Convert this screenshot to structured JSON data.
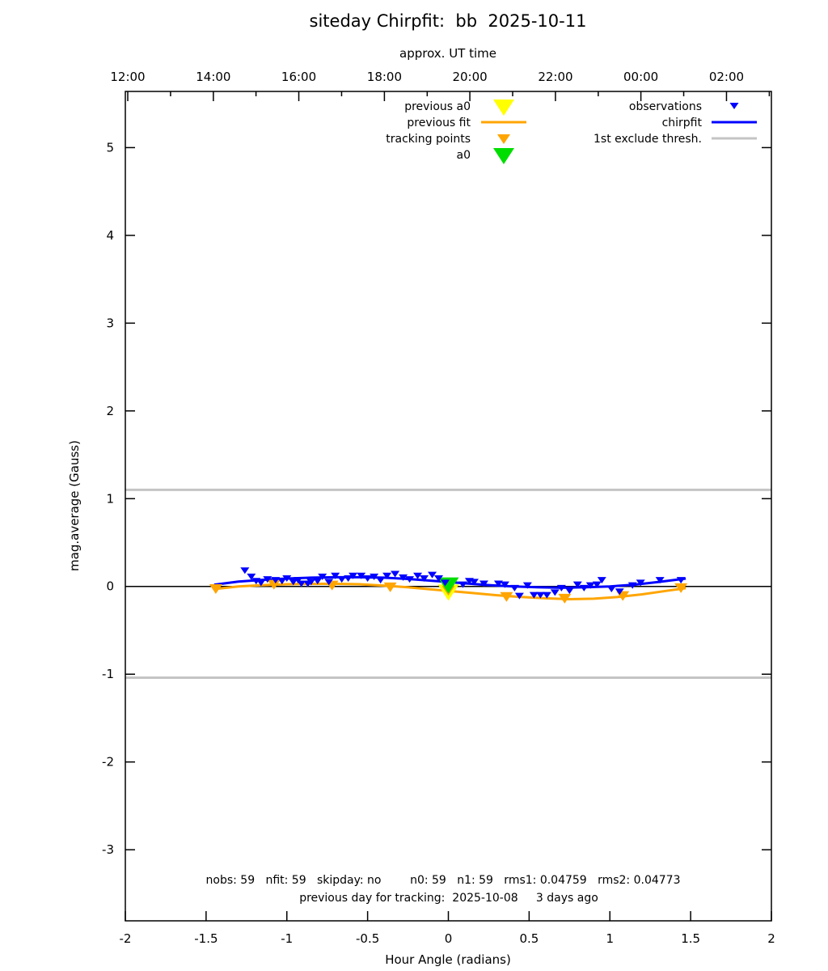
{
  "page_title": "siteday Chirpfit:  bb  2025-10-11",
  "chart_data": {
    "type": "scatter",
    "title": "siteday Chirpfit:  bb  2025-10-11",
    "x2label": "approx. UT time",
    "xlabel": "Hour Angle (radians)",
    "ylabel": "mag.average (Gauss)",
    "xlim": [
      -2,
      2
    ],
    "ylim": [
      -3.81,
      5.64
    ],
    "grid": false,
    "x_ticks": [
      -2,
      -1.5,
      -1,
      -0.5,
      0,
      0.5,
      1,
      1.5,
      2
    ],
    "y_ticks": [
      -3,
      -2,
      -1,
      0,
      1,
      2,
      3,
      4,
      5
    ],
    "ut_ticks": [
      {
        "label": "12:00",
        "ha": -1.985
      },
      {
        "label": "",
        "ha": -1.72
      },
      {
        "label": "14:00",
        "ha": -1.455
      },
      {
        "label": "",
        "ha": -1.191
      },
      {
        "label": "16:00",
        "ha": -0.926
      },
      {
        "label": "",
        "ha": -0.661
      },
      {
        "label": "18:00",
        "ha": -0.396
      },
      {
        "label": "",
        "ha": -0.131
      },
      {
        "label": "20:00",
        "ha": 0.133
      },
      {
        "label": "",
        "ha": 0.398
      },
      {
        "label": "22:00",
        "ha": 0.663
      },
      {
        "label": "",
        "ha": 0.928
      },
      {
        "label": "00:00",
        "ha": 1.192
      },
      {
        "label": "",
        "ha": 1.457
      },
      {
        "label": "02:00",
        "ha": 1.722
      },
      {
        "label": "",
        "ha": 1.987
      }
    ],
    "zero_line": 0,
    "exclude_thresholds": [
      1.1,
      -1.04
    ],
    "colors": {
      "observations": "#0000ff",
      "chirpfit": "#0000ff",
      "previous_fit": "#ffa500",
      "tracking_points": "#ffa500",
      "a0": "#00dd00",
      "previous_a0": "#ffff00",
      "threshold": "#c4c4c4",
      "zero": "#000000"
    },
    "series": {
      "observations": [
        [
          -1.26,
          0.18
        ],
        [
          -1.22,
          0.11
        ],
        [
          -1.19,
          0.06
        ],
        [
          -1.16,
          0.04
        ],
        [
          -1.12,
          0.08
        ],
        [
          -1.07,
          0.07
        ],
        [
          -1.03,
          0.06
        ],
        [
          -1.0,
          0.09
        ],
        [
          -0.96,
          0.05
        ],
        [
          -0.93,
          0.07
        ],
        [
          -0.91,
          0.03
        ],
        [
          -0.87,
          0.03
        ],
        [
          -0.85,
          0.05
        ],
        [
          -0.81,
          0.06
        ],
        [
          -0.78,
          0.11
        ],
        [
          -0.74,
          0.05
        ],
        [
          -0.7,
          0.12
        ],
        [
          -0.66,
          0.08
        ],
        [
          -0.62,
          0.09
        ],
        [
          -0.59,
          0.12
        ],
        [
          -0.54,
          0.12
        ],
        [
          -0.5,
          0.09
        ],
        [
          -0.46,
          0.11
        ],
        [
          -0.42,
          0.07
        ],
        [
          -0.38,
          0.12
        ],
        [
          -0.33,
          0.14
        ],
        [
          -0.28,
          0.1
        ],
        [
          -0.24,
          0.08
        ],
        [
          -0.19,
          0.12
        ],
        [
          -0.15,
          0.09
        ],
        [
          -0.1,
          0.13
        ],
        [
          -0.06,
          0.09
        ],
        [
          -0.02,
          0.04
        ],
        [
          0.09,
          0.02
        ],
        [
          0.13,
          0.06
        ],
        [
          0.16,
          0.05
        ],
        [
          0.22,
          0.03
        ],
        [
          0.31,
          0.03
        ],
        [
          0.35,
          0.02
        ],
        [
          0.41,
          -0.02
        ],
        [
          0.44,
          -0.11
        ],
        [
          0.49,
          0.01
        ],
        [
          0.53,
          -0.1
        ],
        [
          0.57,
          -0.1
        ],
        [
          0.61,
          -0.1
        ],
        [
          0.66,
          -0.07
        ],
        [
          0.7,
          -0.02
        ],
        [
          0.75,
          -0.05
        ],
        [
          0.8,
          0.02
        ],
        [
          0.84,
          -0.02
        ],
        [
          0.88,
          0.01
        ],
        [
          0.92,
          0.02
        ],
        [
          0.95,
          0.07
        ],
        [
          1.01,
          -0.03
        ],
        [
          1.06,
          -0.06
        ],
        [
          1.14,
          0.01
        ],
        [
          1.19,
          0.04
        ],
        [
          1.31,
          0.07
        ],
        [
          1.44,
          0.07
        ]
      ],
      "chirpfit": [
        [
          -1.45,
          0.02
        ],
        [
          -1.3,
          0.055
        ],
        [
          -1.15,
          0.075
        ],
        [
          -1.0,
          0.09
        ],
        [
          -0.85,
          0.1
        ],
        [
          -0.7,
          0.105
        ],
        [
          -0.55,
          0.105
        ],
        [
          -0.4,
          0.1
        ],
        [
          -0.25,
          0.085
        ],
        [
          -0.1,
          0.065
        ],
        [
          0.0,
          0.05
        ],
        [
          0.1,
          0.035
        ],
        [
          0.25,
          0.015
        ],
        [
          0.4,
          0.0
        ],
        [
          0.55,
          -0.01
        ],
        [
          0.7,
          -0.015
        ],
        [
          0.85,
          -0.01
        ],
        [
          1.0,
          0.0
        ],
        [
          1.15,
          0.02
        ],
        [
          1.3,
          0.05
        ],
        [
          1.47,
          0.09
        ]
      ],
      "previous_fit": [
        [
          -1.45,
          -0.03
        ],
        [
          -1.3,
          0.0
        ],
        [
          -1.15,
          0.015
        ],
        [
          -1.0,
          0.025
        ],
        [
          -0.85,
          0.03
        ],
        [
          -0.7,
          0.03
        ],
        [
          -0.55,
          0.025
        ],
        [
          -0.4,
          0.01
        ],
        [
          -0.25,
          -0.01
        ],
        [
          -0.1,
          -0.035
        ],
        [
          0.0,
          -0.05
        ],
        [
          0.15,
          -0.075
        ],
        [
          0.3,
          -0.1
        ],
        [
          0.45,
          -0.12
        ],
        [
          0.6,
          -0.135
        ],
        [
          0.75,
          -0.145
        ],
        [
          0.9,
          -0.14
        ],
        [
          1.05,
          -0.12
        ],
        [
          1.2,
          -0.09
        ],
        [
          1.35,
          -0.05
        ],
        [
          1.47,
          -0.02
        ]
      ],
      "tracking_points": [
        [
          -1.44,
          -0.03
        ],
        [
          -1.08,
          0.02
        ],
        [
          -0.72,
          0.01
        ],
        [
          -0.36,
          -0.01
        ],
        [
          0.0,
          -0.05
        ],
        [
          0.36,
          -0.12
        ],
        [
          0.72,
          -0.14
        ],
        [
          1.08,
          -0.11
        ],
        [
          1.44,
          -0.02
        ]
      ],
      "a0": [
        0.0,
        0.01
      ],
      "previous_a0": [
        0.0,
        -0.07
      ]
    },
    "legend": {
      "left": [
        {
          "label": "previous a0",
          "marker": "triangle_big",
          "color": "#ffff00"
        },
        {
          "label": "previous fit",
          "marker": "line",
          "color": "#ffa500"
        },
        {
          "label": "tracking points",
          "marker": "triangle_small",
          "color": "#ffa500"
        },
        {
          "label": "a0",
          "marker": "triangle_big",
          "color": "#00dd00"
        }
      ],
      "right": [
        {
          "label": "observations",
          "marker": "triangle_tiny",
          "color": "#0000ff"
        },
        {
          "label": "chirpfit",
          "marker": "line",
          "color": "#0000ff"
        },
        {
          "label": "1st exclude thresh.",
          "marker": "line",
          "color": "#c4c4c4"
        }
      ]
    },
    "stats_line1": "nobs: 59   nfit: 59   skipday: no        n0: 59   n1: 59   rms1: 0.04759   rms2: 0.04773",
    "stats_line2": "previous day for tracking:  2025-10-08     3 days ago"
  }
}
